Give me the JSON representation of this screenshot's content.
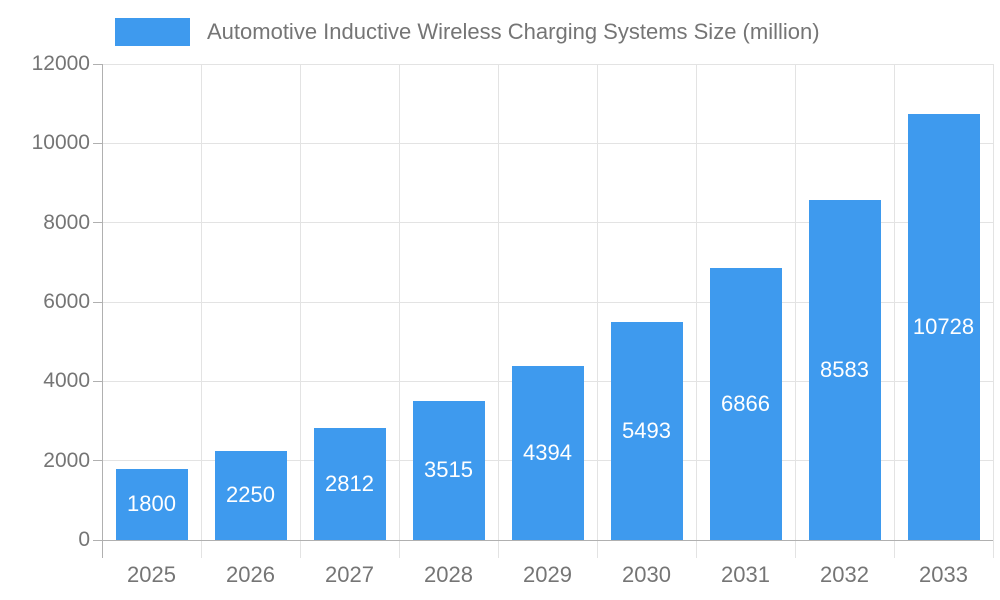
{
  "chart_data": {
    "type": "bar",
    "title": "Automotive Inductive Wireless Charging Systems Size (million)",
    "legend": {
      "label": "Automotive Inductive Wireless Charging Systems Size (million)",
      "position": "top"
    },
    "categories": [
      "2025",
      "2026",
      "2027",
      "2028",
      "2029",
      "2030",
      "2031",
      "2032",
      "2033"
    ],
    "values": [
      1800,
      2250,
      2812,
      3515,
      4394,
      5493,
      6866,
      8583,
      10728
    ],
    "xlabel": "",
    "ylabel": "",
    "ylim": [
      0,
      12000
    ],
    "yticks": [
      0,
      2000,
      4000,
      6000,
      8000,
      10000,
      12000
    ],
    "grid": true,
    "bar_labels": true,
    "colors": {
      "bar": "#3E9AEE",
      "bar_label_text": "#FFFFFF",
      "axis_text": "#757575",
      "grid_line": "#E3E3E3",
      "axis_line": "#B0B0B0",
      "background": "#FFFFFF"
    }
  }
}
